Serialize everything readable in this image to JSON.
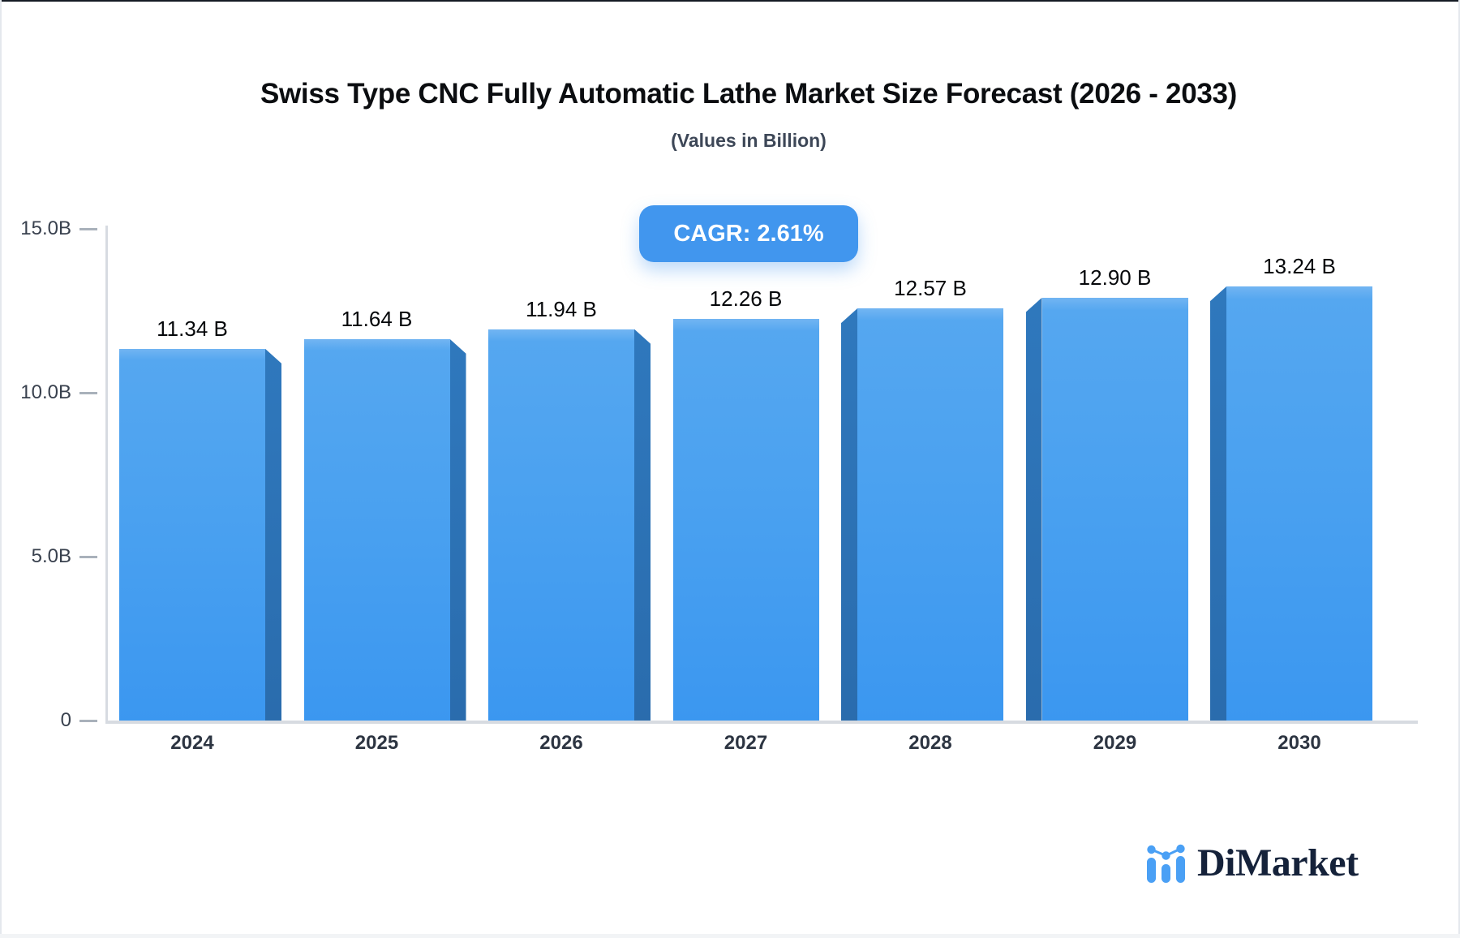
{
  "header": {
    "title": "Swiss Type CNC Fully Automatic Lathe Market Size Forecast (2026 - 2033)",
    "subtitle": "(Values in Billion)"
  },
  "cagr_badge": {
    "label": "CAGR: 2.61%"
  },
  "brand": {
    "name": "DiMarket"
  },
  "chart_data": {
    "type": "bar",
    "title": "Swiss Type CNC Fully Automatic Lathe Market Size Forecast (2026 - 2033)",
    "subtitle": "(Values in Billion)",
    "annotation": "CAGR: 2.61%",
    "categories": [
      "2024",
      "2025",
      "2026",
      "2027",
      "2028",
      "2029",
      "2030"
    ],
    "values": [
      11.34,
      11.64,
      11.94,
      12.26,
      12.57,
      12.9,
      13.24
    ],
    "value_labels": [
      "11.34 B",
      "11.64 B",
      "11.94 B",
      "12.26 B",
      "12.57 B",
      "12.90 B",
      "13.24 B"
    ],
    "xlabel": "",
    "ylabel": "",
    "ylim": [
      0,
      15
    ],
    "y_ticks": [
      {
        "value": 0,
        "label": "0"
      },
      {
        "value": 5,
        "label": "5.0B"
      },
      {
        "value": 10,
        "label": "10.0B"
      },
      {
        "value": 15,
        "label": "15.0B"
      }
    ],
    "grid": "off",
    "legend": "none",
    "bar_style": "3d-bevel-facing-away-from-center",
    "colors": {
      "bar_face": "#4aa1f0",
      "bar_face_top": "#72b5f2",
      "bar_face_bottom": "#3b97f0",
      "bar_side": "#2e76ba",
      "badge_bg": "#4196ee",
      "badge_text": "#ffffff",
      "axis_line": "#d7dbe1",
      "tick_dash": "#a9b1bb",
      "y_label": "#39414e",
      "x_label": "#2d3542",
      "value_label": "#05070a",
      "title": "#0b0d10",
      "subtitle": "#3d4757",
      "logo_blue": "#4aa0f5",
      "logo_navy": "#15223a"
    }
  }
}
